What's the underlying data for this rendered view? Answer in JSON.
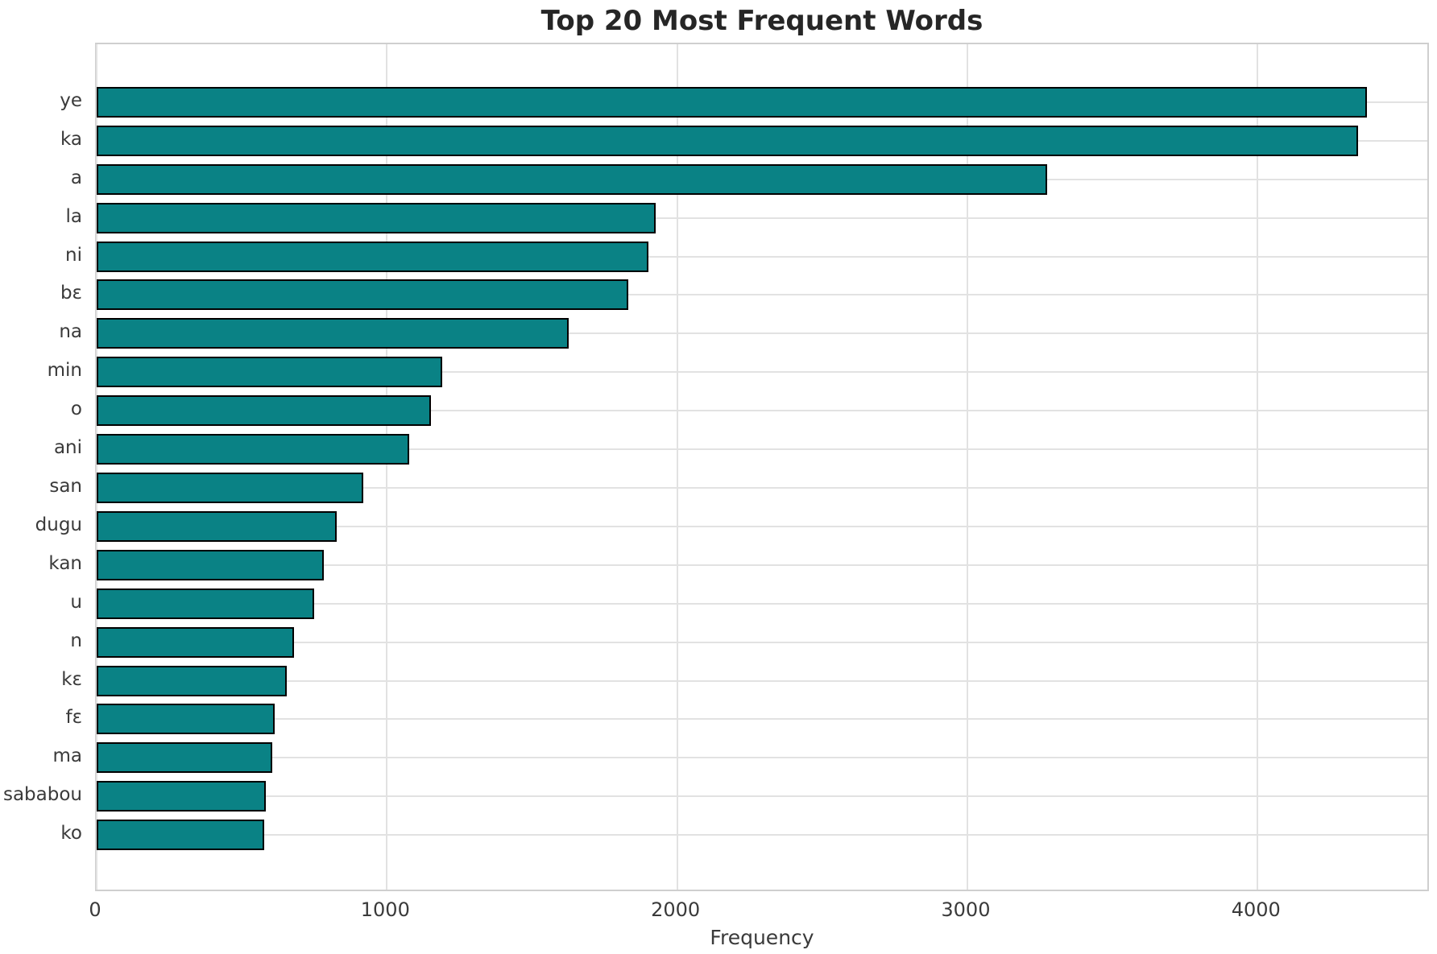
{
  "chart_data": {
    "type": "bar",
    "orientation": "horizontal",
    "title": "Top 20 Most Frequent Words",
    "xlabel": "Frequency",
    "ylabel": "",
    "categories": [
      "ye",
      "ka",
      "a",
      "la",
      "ni",
      "bɛ",
      "na",
      "min",
      "o",
      "ani",
      "san",
      "dugu",
      "kan",
      "u",
      "n",
      "kɛ",
      "fɛ",
      "ma",
      "sababou",
      "ko"
    ],
    "values": [
      4378,
      4345,
      3276,
      1925,
      1900,
      1833,
      1625,
      1192,
      1153,
      1078,
      920,
      826,
      784,
      748,
      681,
      656,
      612,
      606,
      584,
      576
    ],
    "xticks": [
      0,
      1000,
      2000,
      3000,
      4000
    ],
    "xlim": [
      0,
      4596
    ],
    "grid": true,
    "legend": false,
    "colors": {
      "bar_fill": "#0a8285",
      "bar_edge": "#000000",
      "grid": "#e2e2e2",
      "spine": "#cfcfcf",
      "title_text": "#262626",
      "tick_text": "#3a3a3a"
    }
  }
}
